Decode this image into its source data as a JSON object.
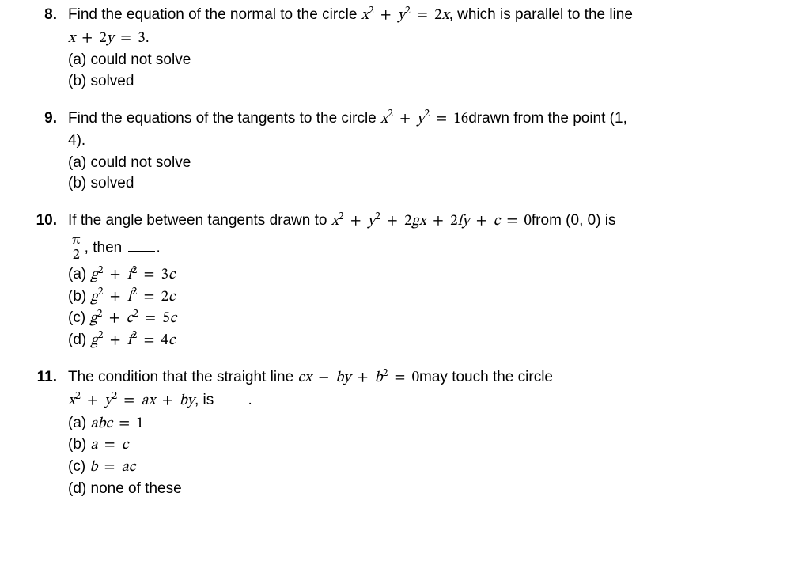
{
  "colors": {
    "text": "#000000",
    "background": "#ffffff"
  },
  "typography": {
    "body_fontsize_pt": 14,
    "font_family": "Segoe UI / sans-serif",
    "math_family": "Cambria Math / serif italic"
  },
  "questions": [
    {
      "number": "8.",
      "stem_pre": "Find the equation of the normal to the circle",
      "stem_math1_parts": {
        "x": "x",
        "sq": "2",
        "plus": "+",
        "y": "y",
        "eq": "=",
        "two": "2",
        "x2": "x"
      },
      "stem_mid": ", which is parallel to the line",
      "stem_line2_math": {
        "x": "x",
        "plus": "+",
        "two": "2",
        "y": "y",
        "eq": "=",
        "three": "3"
      },
      "stem_line2_tail": ".",
      "options": [
        {
          "letter": "(a)",
          "text": "could not solve"
        },
        {
          "letter": "(b)",
          "text": "solved"
        }
      ]
    },
    {
      "number": "9.",
      "stem_pre": "Find the equations of the tangents to the circle ",
      "math": {
        "x": "x",
        "sq": "2",
        "plus": "+",
        "y": "y",
        "eq": "=",
        "sixteen": "16"
      },
      "stem_post": "drawn from the point (1,",
      "stem_line2": "4).",
      "options": [
        {
          "letter": "(a)",
          "text": "could not solve"
        },
        {
          "letter": "(b)",
          "text": "solved"
        }
      ]
    },
    {
      "number": "10.",
      "stem_pre": "If the angle between tangents drawn to ",
      "math": {
        "x": "x",
        "sq": "2",
        "plus": "+",
        "y": "y",
        "two": "2",
        "g": "g",
        "f": "f",
        "c": "c",
        "eq": "=",
        "zero": "0"
      },
      "stem_post": "from (0, 0) is",
      "frac": {
        "num": "π",
        "den": "2"
      },
      "stem_line2_tail": ", then ",
      "stem_line2_period": ".",
      "options": [
        {
          "letter": "(a)",
          "lhs_g": "g",
          "lhs_f": "f",
          "eq": "=",
          "coef": "3",
          "c": "c"
        },
        {
          "letter": "(b)",
          "lhs_g": "g",
          "lhs_f": "f",
          "eq": "=",
          "coef": "2",
          "c": "c"
        },
        {
          "letter": "(c)",
          "lhs_g": "g",
          "lhs_c": "c",
          "eq": "=",
          "coef": "5",
          "c": "c"
        },
        {
          "letter": "(d)",
          "lhs_g": "g",
          "lhs_f": "f",
          "eq": "=",
          "coef": "4",
          "c": "c"
        }
      ]
    },
    {
      "number": "11.",
      "stem_pre": "The condition that the straight line ",
      "math1": {
        "c": "c",
        "x": "x",
        "minus": "−",
        "b": "b",
        "y": "y",
        "plus": "+",
        "sq": "2",
        "eq": "=",
        "zero": "0"
      },
      "stem_mid": "may touch the circle",
      "math2": {
        "x": "x",
        "sq": "2",
        "plus": "+",
        "y": "y",
        "eq": "=",
        "a": "a",
        "b": "b"
      },
      "stem_line2_tail": ", is ",
      "stem_line2_period": ".",
      "options": [
        {
          "letter": "(a)",
          "a": "a",
          "b": "b",
          "c": "c",
          "eq": "=",
          "one": "1"
        },
        {
          "letter": "(b)",
          "a": "a",
          "eq": "=",
          "c": "c"
        },
        {
          "letter": "(c)",
          "b": "b",
          "eq": "=",
          "a": "a",
          "c": "c"
        },
        {
          "letter": "(d)",
          "text": "none of these"
        }
      ]
    }
  ]
}
